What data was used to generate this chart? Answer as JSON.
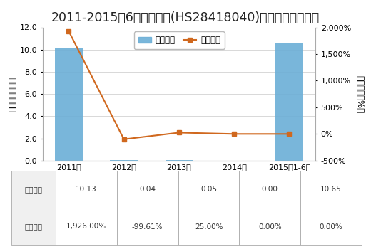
{
  "title": "2011-2015年6月偏錨酸锨(HS28418040)进口量及增速统计",
  "categories": [
    "2011年",
    "2012年",
    "2013年",
    "2014年",
    "2015年1-6月"
  ],
  "bar_values": [
    10.13,
    0.04,
    0.05,
    0.0,
    10.65
  ],
  "line_values": [
    1926.0,
    -99.61,
    25.0,
    0.0,
    0.0
  ],
  "bar_color": "#6baed6",
  "line_color": "#d0681e",
  "ylabel_left": "进口数量（吨）",
  "ylabel_right": "同比增长（%）",
  "ylim_left": [
    0.0,
    12.0
  ],
  "ylim_right": [
    -500,
    2000
  ],
  "yticks_left": [
    0.0,
    2.0,
    4.0,
    6.0,
    8.0,
    10.0,
    12.0
  ],
  "yticks_right": [
    -500,
    0,
    500,
    1000,
    1500,
    2000
  ],
  "ytick_labels_right": [
    "-500%",
    "0%",
    "500%",
    "1,000%",
    "1,500%",
    "2,000%"
  ],
  "legend_bar_label": "进口数量",
  "legend_line_label": "同比增长",
  "table_row1_label": "进口数量",
  "table_row2_label": "同比增长",
  "table_row1_values": [
    "10.13",
    "0.04",
    "0.05",
    "0.00",
    "10.65"
  ],
  "table_row2_values": [
    "1,926.00%",
    "-99.61%",
    "25.00%",
    "0.00%",
    "0.00%"
  ],
  "title_fontsize": 12.5,
  "axis_fontsize": 8.5,
  "tick_fontsize": 8,
  "table_fontsize": 7.5,
  "background_color": "#ffffff",
  "grid_color": "#d8d8d8"
}
